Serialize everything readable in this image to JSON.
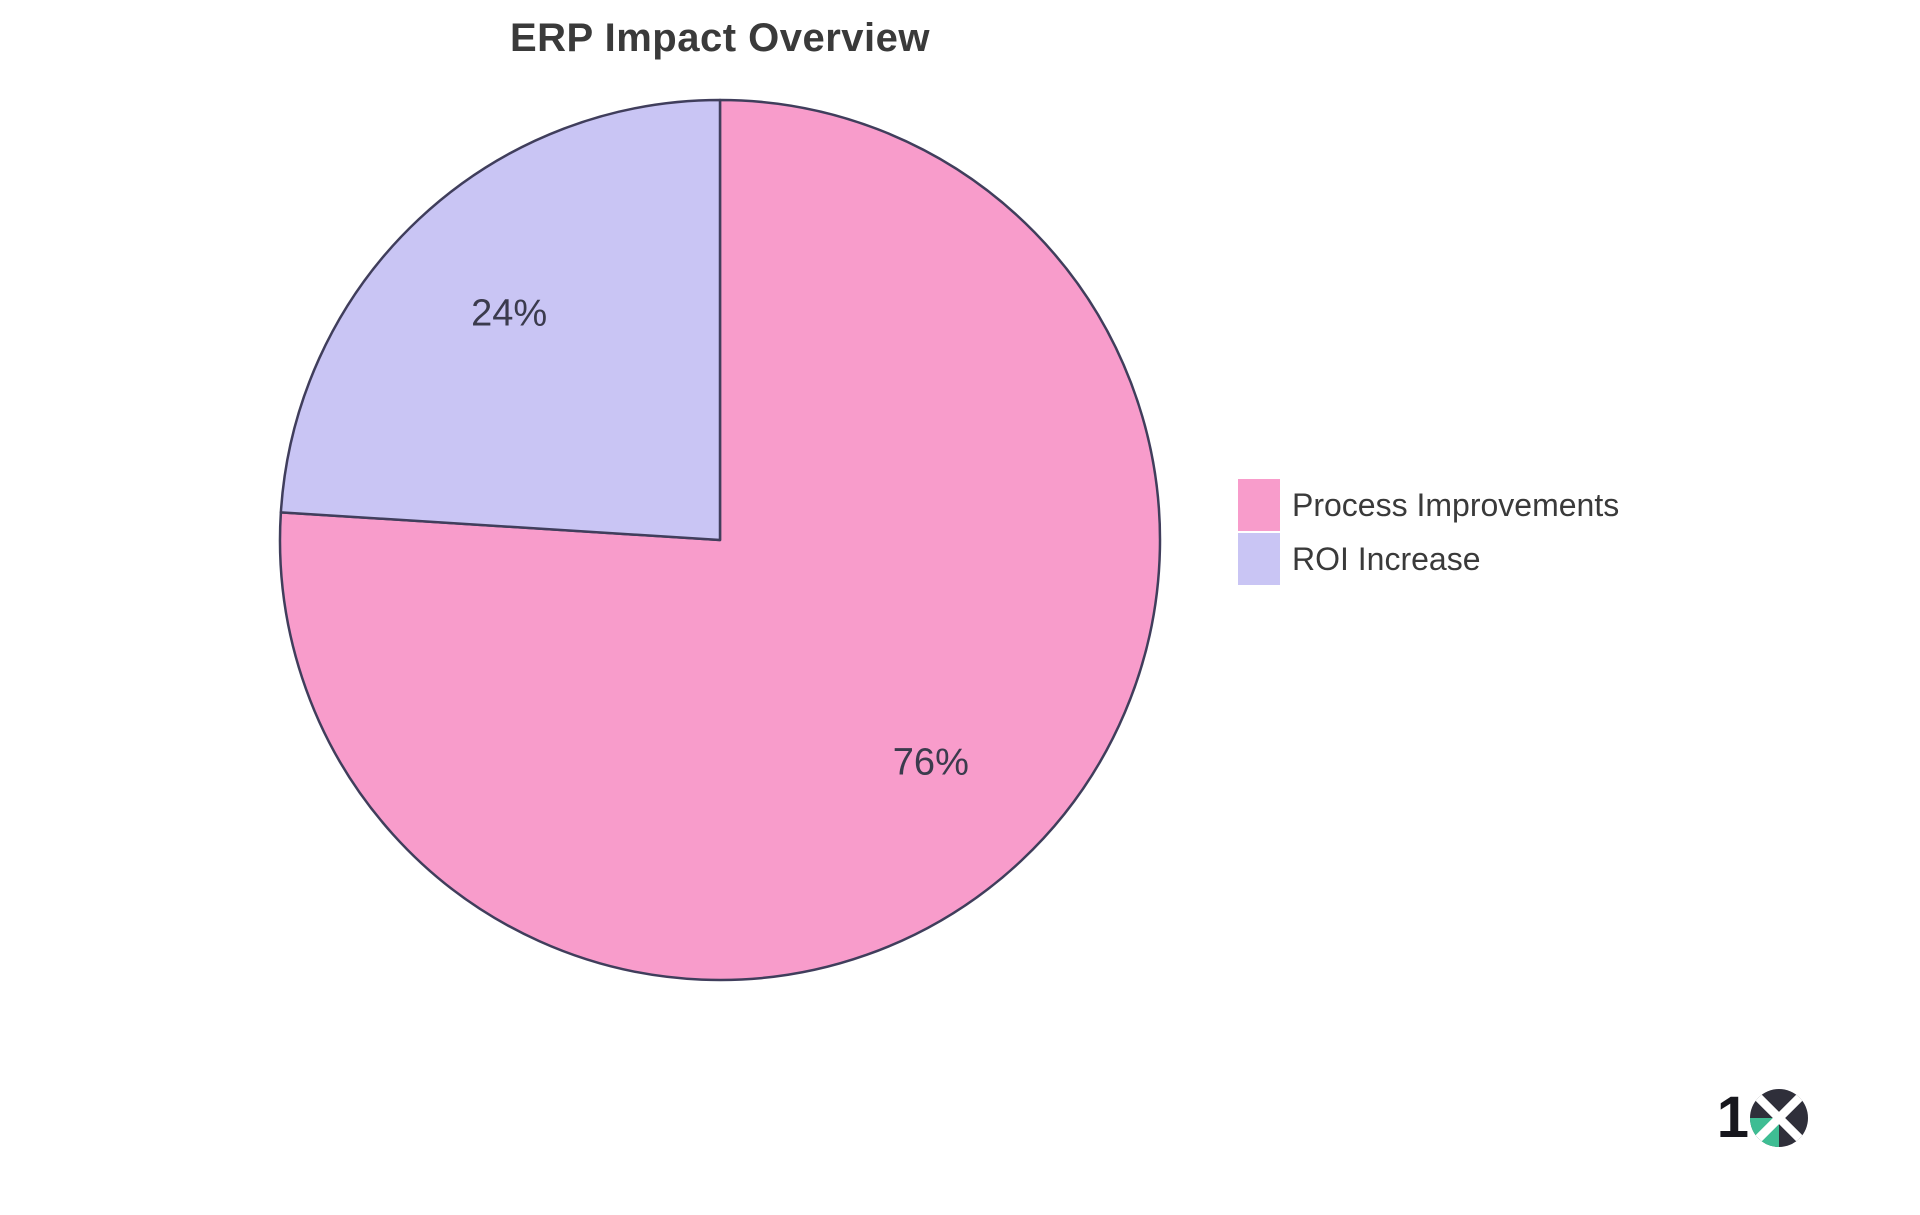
{
  "title": "ERP Impact Overview",
  "chart_data": {
    "type": "pie",
    "title": "ERP Impact Overview",
    "labels": [
      "Process Improvements",
      "ROI Increase"
    ],
    "values": [
      76,
      24
    ],
    "slice_labels": [
      "76%",
      "24%"
    ],
    "colors": [
      "#F89CCB",
      "#C9C5F4"
    ],
    "stroke_color": "#403E5C",
    "label_text_color": "#3B3B4D",
    "start_angle": "top",
    "direction": "clockwise",
    "legend_position": "right",
    "legend_entries": [
      "Process Improvements",
      "ROI Increase"
    ]
  },
  "legend": {
    "items": [
      {
        "label": "Process Improvements"
      },
      {
        "label": "ROI Increase"
      }
    ]
  },
  "watermark": {
    "text": "1",
    "icon": "circle-x-icon"
  }
}
